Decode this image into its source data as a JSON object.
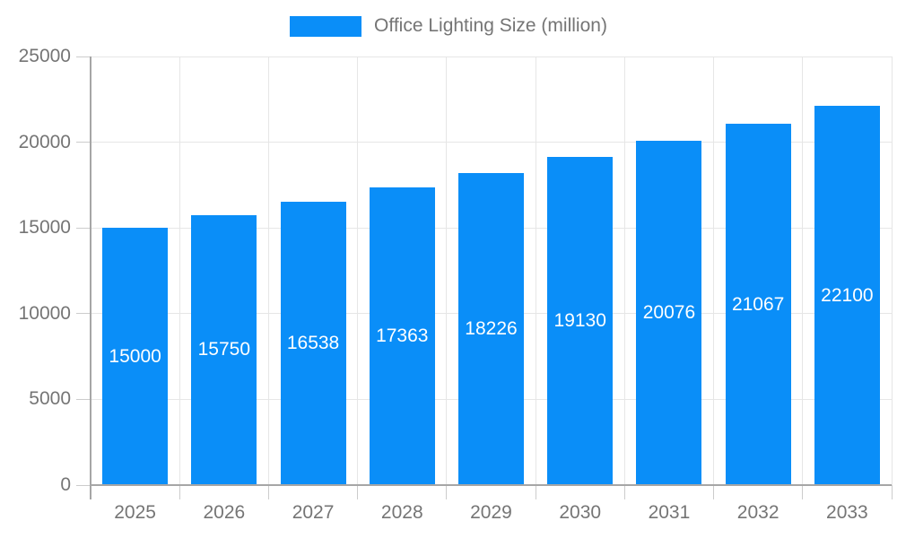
{
  "legend": {
    "label": "Office Lighting Size (million)",
    "swatch_color": "#0A8EF8"
  },
  "colors": {
    "bar": "#0A8EF8",
    "label": "#757575",
    "grid": "#e6e6e6",
    "tick": "#cccccc",
    "axis": "#a6a6a6",
    "value_label": "#ffffff",
    "background": "#ffffff"
  },
  "chart_data": {
    "type": "bar",
    "title": "Office Lighting Size (million)",
    "categories": [
      "2025",
      "2026",
      "2027",
      "2028",
      "2029",
      "2030",
      "2031",
      "2032",
      "2033"
    ],
    "values": [
      15000,
      15750,
      16538,
      17363,
      18226,
      19130,
      20076,
      21067,
      22100
    ],
    "value_labels": [
      "15000",
      "15750",
      "16538",
      "17363",
      "18226",
      "19130",
      "20076",
      "21067",
      "22100"
    ],
    "series": [
      {
        "name": "Office Lighting Size (million)",
        "values": [
          15000,
          15750,
          16538,
          17363,
          18226,
          19130,
          20076,
          21067,
          22100
        ]
      }
    ],
    "xlabel": "",
    "ylabel": "",
    "ylim": [
      0,
      25000
    ],
    "ytick_interval": 5000,
    "yticks": [
      0,
      5000,
      10000,
      15000,
      20000,
      25000
    ],
    "grid": true,
    "legend_position": "top-center",
    "bar_color": "#0A8EF8",
    "value_label_position": "inside-middle",
    "value_label_color": "#ffffff"
  }
}
